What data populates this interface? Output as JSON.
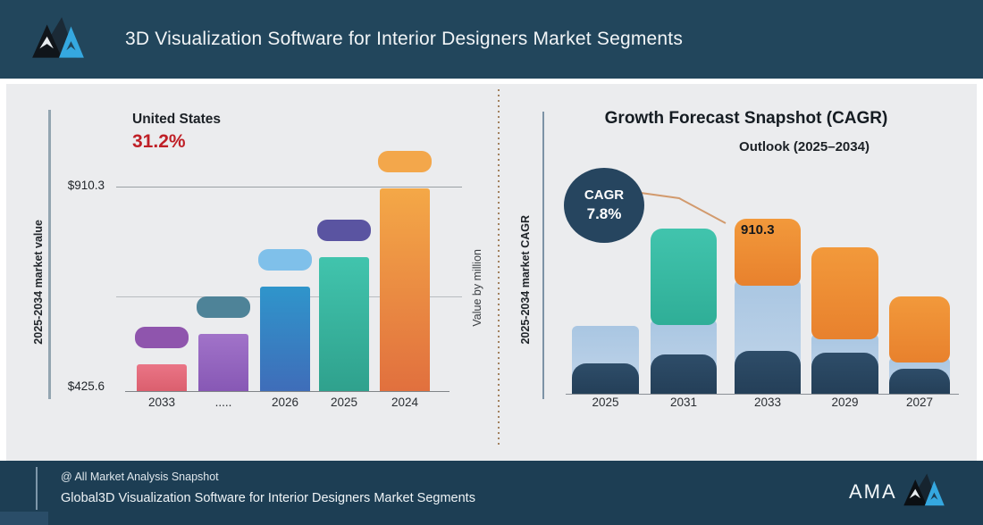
{
  "header": {
    "logo": "AMA",
    "title": "3D Visualization Software for Interior Designers Market Segments"
  },
  "left_panel": {
    "region_label": "United States",
    "highlight_value": "31.2%",
    "y_axis_title": "2025-2034 market value",
    "tick_top": "$910.3",
    "tick_bottom": "$425.6"
  },
  "between": {
    "label": "Value by million"
  },
  "right_panel": {
    "title": "Growth Forecast Snapshot (CAGR)",
    "subtitle": "Outlook (2025–2034)",
    "badge_line1": "CAGR",
    "badge_line2": "7.8%",
    "y_axis_title": "2025-2034 market CAGR"
  },
  "footer": {
    "credit": "@ All Market Analysis Snapshot",
    "caption": "Global3D Visualization Software for Interior Designers Market Segments",
    "brand": "AMA"
  },
  "colors": {
    "header_bg": "#22465c",
    "footer_bg": "#1d3e54",
    "panel_bg": "#ebecee",
    "accent_red": "#bf1f26",
    "badge_navy": "#26455f",
    "connector": "#d29a6d",
    "divider_dash": "#a3825f",
    "logo_blue": "#35a8e0",
    "logo_black": "#10151a"
  },
  "chart_data": [
    {
      "type": "bar",
      "title": "United States 2025-2034 market value by year",
      "categories": [
        "2033",
        ".....",
        "2026",
        "2025",
        "2024"
      ],
      "values": [
        489,
        561,
        673,
        743,
        906
      ],
      "value_note": "values in $ million, estimated from bar heights against labeled gridlines",
      "xlabel": "",
      "ylabel": "2025-2034 market value",
      "yticks": [
        "$425.6",
        "$910.3"
      ],
      "ylim": [
        425.6,
        1010
      ],
      "grid": "two horizontal gridlines, one labeled $910.3, one unlabeled",
      "bar_colors": [
        [
          "#ea7586",
          "#db5f6e"
        ],
        [
          "#a173c9",
          "#8758b5"
        ],
        [
          "#2f95cb",
          "#3f6db9"
        ],
        [
          "#41c4ad",
          "#2fa18d"
        ],
        [
          "#f4a847",
          "#e1703e"
        ]
      ],
      "cap_colors": [
        "#8f55ad",
        "#4e8398",
        "#7fc0ea",
        "#5a54a1",
        "#f3a74b"
      ]
    },
    {
      "type": "stacked-bar",
      "title": "Growth Forecast Snapshot (CAGR) — Outlook (2025–2034)",
      "categories": [
        "2025",
        "2031",
        "2033",
        "2029",
        "2027"
      ],
      "series": [
        {
          "name": "base",
          "color_key": "navy",
          "values": [
            34,
            44,
            48,
            46,
            28
          ]
        },
        {
          "name": "mid",
          "color_key": "lightblue",
          "values": [
            42,
            39,
            79,
            21,
            13
          ]
        },
        {
          "name": "top",
          "color_keys": [
            "",
            "teal",
            "orange",
            "orange",
            "orange"
          ],
          "values": [
            0,
            102,
            69,
            97,
            68
          ]
        }
      ],
      "value_note": "relative heights (no value axis shown); only label shown is 910.3 on the 2033 bar",
      "annotations": [
        {
          "category": "2033",
          "text": "910.3"
        }
      ],
      "badge": {
        "text": "CAGR 7.8%"
      },
      "ylabel": "2025-2034 market CAGR",
      "segment_colors": {
        "navy": [
          "#2e4d69",
          "#243f58"
        ],
        "lightblue": [
          "#a9c6e2",
          "#c3d6ea"
        ],
        "teal": [
          "#41c4ad",
          "#2fae97"
        ],
        "orange": [
          "#f2993b",
          "#e8812d"
        ]
      }
    }
  ]
}
